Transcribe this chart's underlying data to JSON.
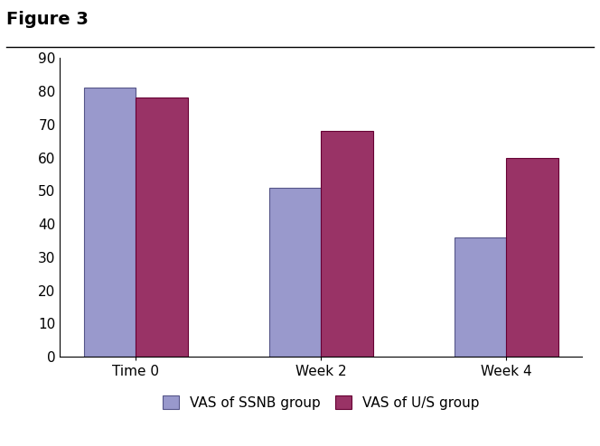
{
  "title": "Figure 3",
  "categories": [
    "Time 0",
    "Week 2",
    "Week 4"
  ],
  "ssnb_values": [
    81,
    51,
    36
  ],
  "us_values": [
    78,
    68,
    60
  ],
  "ssnb_color": "#9999cc",
  "ssnb_edge": "#555588",
  "us_color": "#993366",
  "us_edge": "#660033",
  "ylim": [
    0,
    90
  ],
  "yticks": [
    0,
    10,
    20,
    30,
    40,
    50,
    60,
    70,
    80,
    90
  ],
  "legend_ssnb": "VAS of SSNB group",
  "legend_us": "VAS of U/S group",
  "bar_width": 0.28,
  "background_color": "#ffffff",
  "title_fontsize": 14,
  "tick_fontsize": 11,
  "legend_fontsize": 11
}
